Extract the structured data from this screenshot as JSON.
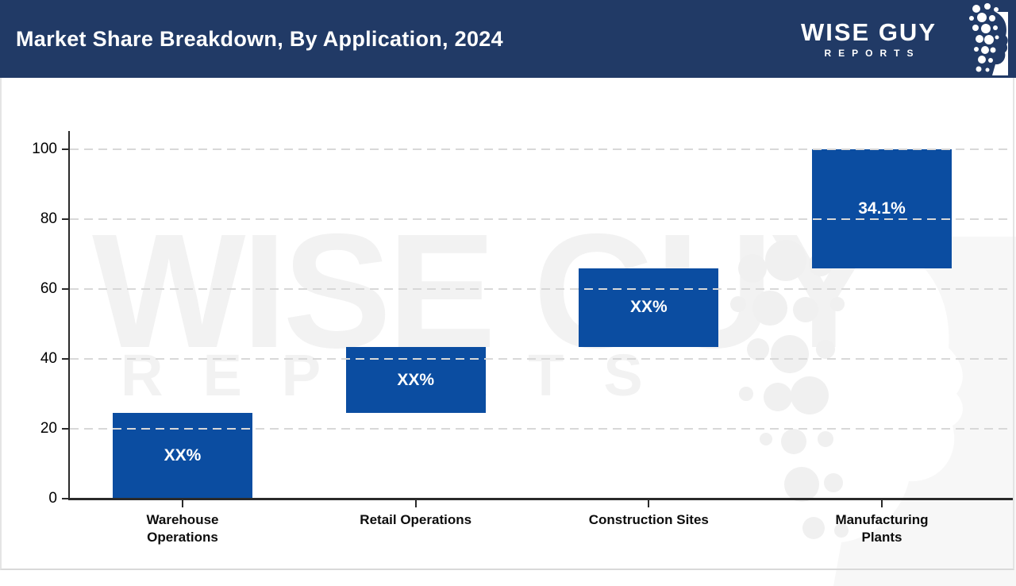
{
  "header": {
    "title": "Market Share Breakdown, By Application, 2024",
    "logo": {
      "wise_guy": "WISE GUY",
      "reports": "REPORTS"
    }
  },
  "watermark": {
    "line1": "WISE GUY",
    "line2": "REPORTS"
  },
  "colors": {
    "header_background": "#213a66",
    "bar_blue": "#0b4da1",
    "gridline": "#d8d8d8",
    "axis": "#2a2a2a",
    "value_label": "#ffffff",
    "watermark": "#f2f2f2"
  },
  "chart_data": {
    "type": "bar",
    "subtype": "waterfall-floating-segments",
    "title": "Market Share Breakdown, By Application, 2024",
    "xlabel": "",
    "ylabel": "",
    "ylim": [
      0,
      100
    ],
    "yticks": [
      0,
      20,
      40,
      60,
      80,
      100
    ],
    "ytick_labels_top_to_bottom": [
      "100",
      "80",
      "60",
      "40",
      "20",
      "0"
    ],
    "grid": "horizontal-dashed-over-bars",
    "legend": "none",
    "bar_color": "#0b4da1",
    "categories": [
      "Warehouse Operations",
      "Retail Operations",
      "Construction Sites",
      "Manufacturing Plants"
    ],
    "segments": [
      {
        "category": "Warehouse Operations",
        "start": 0,
        "end": 24.5,
        "value": 24.5,
        "value_label": "XX%"
      },
      {
        "category": "Retail Operations",
        "start": 24.5,
        "end": 43.2,
        "value": 18.7,
        "value_label": "XX%"
      },
      {
        "category": "Construction Sites",
        "start": 43.2,
        "end": 65.9,
        "value": 22.7,
        "value_label": "XX%"
      },
      {
        "category": "Manufacturing Plants",
        "start": 65.9,
        "end": 100,
        "value": 34.1,
        "value_label": "34.1%"
      }
    ]
  },
  "categories_display": [
    {
      "line1": "Warehouse",
      "line2": "Operations"
    },
    {
      "line1": "Retail Operations",
      "line2": ""
    },
    {
      "line1": "Construction Sites",
      "line2": ""
    },
    {
      "line1": "Manufacturing",
      "line2": "Plants"
    }
  ]
}
